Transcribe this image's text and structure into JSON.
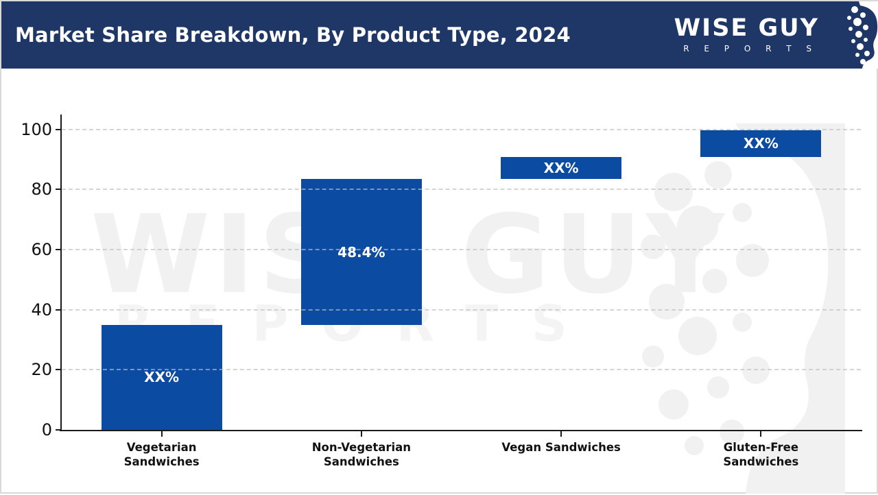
{
  "header": {
    "title": "Market Share Breakdown, By Product Type, 2024",
    "logo": {
      "name_line": "WISE GUY",
      "reports_line": "R E P O R T S"
    }
  },
  "watermark": {
    "name_line": "WISE GUY",
    "reports_line": "REPORTS"
  },
  "colors": {
    "header_bg": "#1f3766",
    "bar_blue": "#0b4ba1",
    "axis": "#1a1a1a",
    "gridline": "#d4d4d4",
    "bar_label_text": "#ffffff",
    "watermark_gray": "#f1f1f1",
    "card_border": "#d9d9d9"
  },
  "chart_data": {
    "type": "bar",
    "subtype": "waterfall",
    "title": "Market Share Breakdown, By Product Type, 2024",
    "categories": [
      "Vegetarian\nSandwiches",
      "Non-Vegetarian\nSandwiches",
      "Vegan Sandwiches",
      "Gluten-Free\nSandwiches"
    ],
    "bars": [
      {
        "category": "Vegetarian\nSandwiches",
        "start": 0,
        "end": 35,
        "value": 35,
        "label": "XX%"
      },
      {
        "category": "Non-Vegetarian\nSandwiches",
        "start": 35,
        "end": 83.4,
        "value": 48.4,
        "label": "48.4%"
      },
      {
        "category": "Vegan Sandwiches",
        "start": 83.4,
        "end": 90.9,
        "value": 7.5,
        "label": "XX%"
      },
      {
        "category": "Gluten-Free\nSandwiches",
        "start": 90.9,
        "end": 99.8,
        "value": 8.9,
        "label": "XX%"
      }
    ],
    "yticks": [
      0,
      20,
      40,
      60,
      80,
      100
    ],
    "ylim": [
      0,
      105
    ],
    "xlabel": "",
    "ylabel": "",
    "legend": "none",
    "grid": "horizontal-dashed-over-bars",
    "bar_color": "#0b4ba1"
  }
}
